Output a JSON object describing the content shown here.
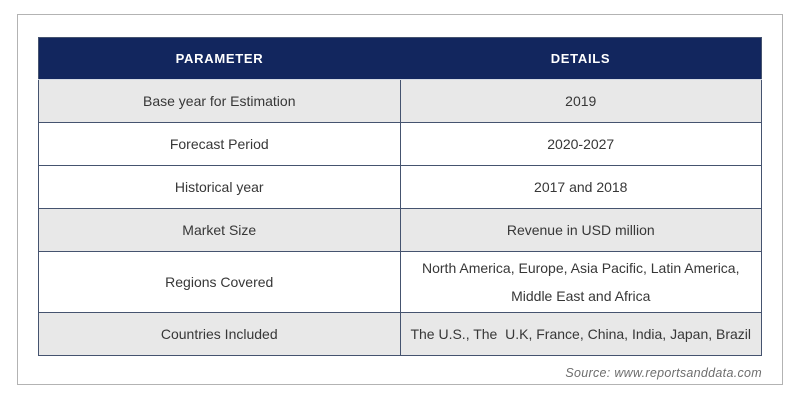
{
  "table": {
    "headers": [
      "PARAMETER",
      "DETAILS"
    ],
    "rows": [
      {
        "parameter": "Base year for Estimation",
        "details": "2019"
      },
      {
        "parameter": "Forecast Period",
        "details": "2020-2027"
      },
      {
        "parameter": "Historical year",
        "details": "2017 and 2018"
      },
      {
        "parameter": "Market Size",
        "details": "Revenue in USD million"
      },
      {
        "parameter": "Regions Covered",
        "details": "North America, Europe, Asia Pacific, Latin America,\nMiddle East and Africa"
      },
      {
        "parameter": "Countries Included",
        "details": "The U.S., The  U.K, France, China, India, Japan, Brazil"
      }
    ]
  },
  "footer": {
    "source": "Source: www.reportsanddata.com"
  },
  "colors": {
    "header_bg": "#12265e",
    "header_text": "#ffffff",
    "row_shaded_bg": "#e8e8e8",
    "row_plain_bg": "#ffffff",
    "cell_text": "#373737",
    "grid_border": "#45536f",
    "card_border": "#b3b3b3",
    "source_text": "#6e6e6e"
  },
  "chart_data": {
    "type": "table",
    "title": "Report scope parameters",
    "columns": [
      "PARAMETER",
      "DETAILS"
    ],
    "rows": [
      [
        "Base year for Estimation",
        "2019"
      ],
      [
        "Forecast Period",
        "2020-2027"
      ],
      [
        "Historical year",
        "2017 and 2018"
      ],
      [
        "Market Size",
        "Revenue in USD million"
      ],
      [
        "Regions Covered",
        "North America, Europe, Asia Pacific, Latin America, Middle East and Africa"
      ],
      [
        "Countries Included",
        "The U.S., The U.K, France, China, India, Japan, Brazil"
      ]
    ],
    "source": "Source: www.reportsanddata.com",
    "layout": {
      "header_position": "top",
      "shaded_row_indexes": [
        0,
        3,
        5
      ],
      "grid": true
    }
  }
}
